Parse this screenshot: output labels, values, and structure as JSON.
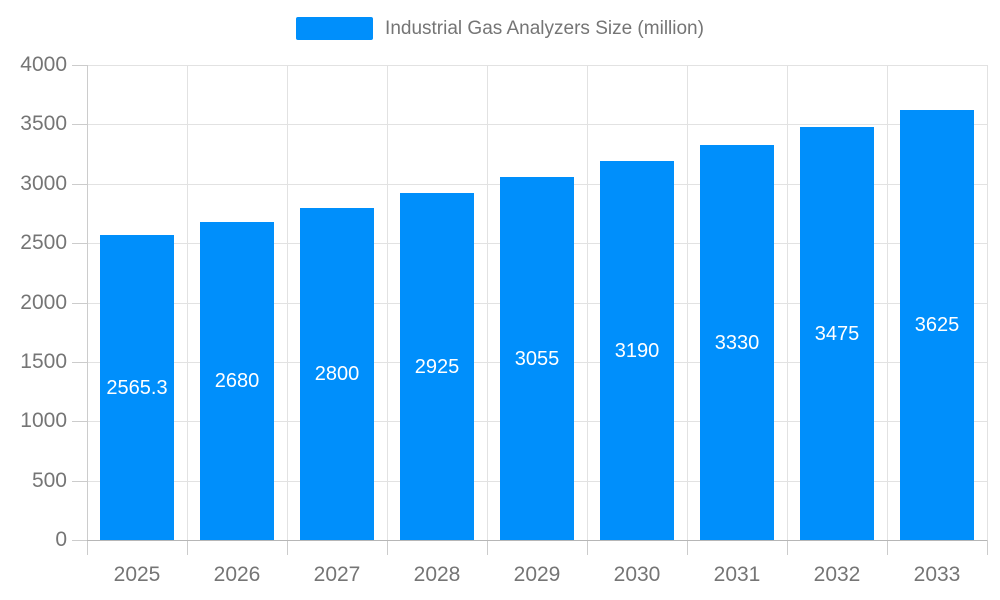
{
  "chart_data": {
    "type": "bar",
    "title": "Industrial Gas Analyzers Size (million)",
    "categories": [
      "2025",
      "2026",
      "2027",
      "2028",
      "2029",
      "2030",
      "2031",
      "2032",
      "2033"
    ],
    "values": [
      2565.3,
      2680,
      2800,
      2925,
      3055,
      3190,
      3330,
      3475,
      3625
    ],
    "bar_labels": [
      "2565.3",
      "2680",
      "2800",
      "2925",
      "3055",
      "3190",
      "3330",
      "3475",
      "3625"
    ],
    "series_name": "Industrial Gas Analyzers Size (million)",
    "ylim": [
      0,
      4000
    ],
    "yticks": [
      0,
      500,
      1000,
      1500,
      2000,
      2500,
      3000,
      3500,
      4000
    ],
    "ytick_labels": [
      "0",
      "500",
      "1000",
      "1500",
      "2000",
      "2500",
      "3000",
      "3500",
      "4000"
    ],
    "grid": true,
    "legend_position": "top",
    "colors": {
      "bar": "#008FFB",
      "grid_line": "#e2e2e2",
      "axis_line": "#b6b6b6",
      "tick_line": "#cccccc",
      "tick_label": "#757575",
      "bar_label": "#ffffff",
      "background": "#ffffff"
    }
  }
}
